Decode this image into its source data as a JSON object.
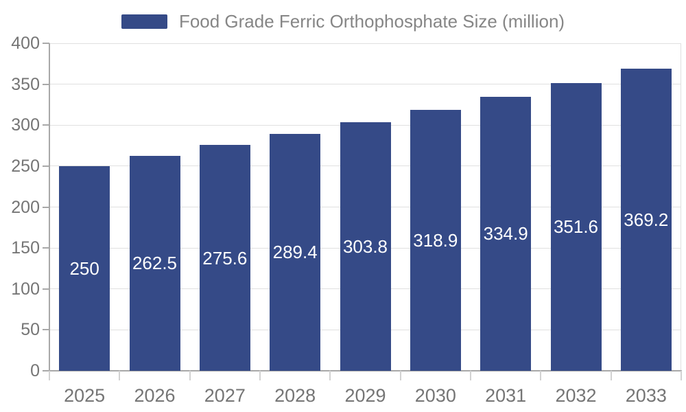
{
  "legend": {
    "label": "Food Grade Ferric Orthophosphate Size (million)"
  },
  "chart_data": {
    "type": "bar",
    "title": "Food Grade Ferric Orthophosphate Size (million)",
    "categories": [
      "2025",
      "2026",
      "2027",
      "2028",
      "2029",
      "2030",
      "2031",
      "2032",
      "2033"
    ],
    "values": [
      250,
      262.5,
      275.6,
      289.4,
      303.8,
      318.9,
      334.9,
      351.6,
      369.2
    ],
    "value_labels": [
      "250",
      "262.5",
      "275.6",
      "289.4",
      "303.8",
      "318.9",
      "334.9",
      "351.6",
      "369.2"
    ],
    "xlabel": "",
    "ylabel": "",
    "ylim": [
      0,
      400
    ],
    "ytick_labels": [
      "0",
      "50",
      "100",
      "150",
      "200",
      "250",
      "300",
      "350",
      "400"
    ],
    "grid": true,
    "legend_position": "top-center",
    "colors": {
      "bar": "#354a87",
      "bar_value_label": "#ffffff",
      "axis_line": "#a8a8a8",
      "x_tick_mark": "#d2d2d2",
      "gridline": "#e0e0e0",
      "axis_tick_label": "#757575",
      "legend_text": "#868686",
      "background": "#ffffff"
    }
  }
}
